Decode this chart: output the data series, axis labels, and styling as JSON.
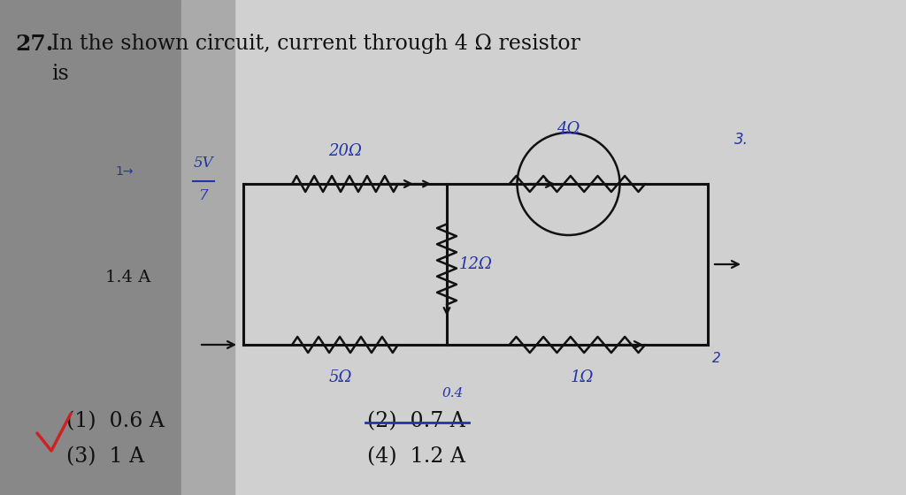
{
  "title_number": "27.",
  "title_text": "In the shown circuit, current through 4 Ω resistor",
  "title_text2": "is",
  "bg_left_color": "#9a9a9a",
  "bg_right_color": "#d0d0d0",
  "circuit_color": "#111111",
  "handwriting_color": "#2233aa",
  "answer_color": "#111111",
  "options": [
    "(1)  0.6 A",
    "(2)  0.7 A",
    "(3)  1 A",
    "(4)  1.2 A"
  ],
  "resistors": {
    "top_left": "20Ω",
    "top_right": "4Ω",
    "middle": "12Ω",
    "bottom_left": "5Ω",
    "bottom_right": "1Ω"
  },
  "current_label": "1.4 A",
  "TLx": 275,
  "TLy_img": 208,
  "TRx": 800,
  "TRy_img": 208,
  "BLx": 275,
  "BLy_img": 390,
  "BRx": 800,
  "BRy_img": 390,
  "Mx": 505,
  "circ_r": 58
}
